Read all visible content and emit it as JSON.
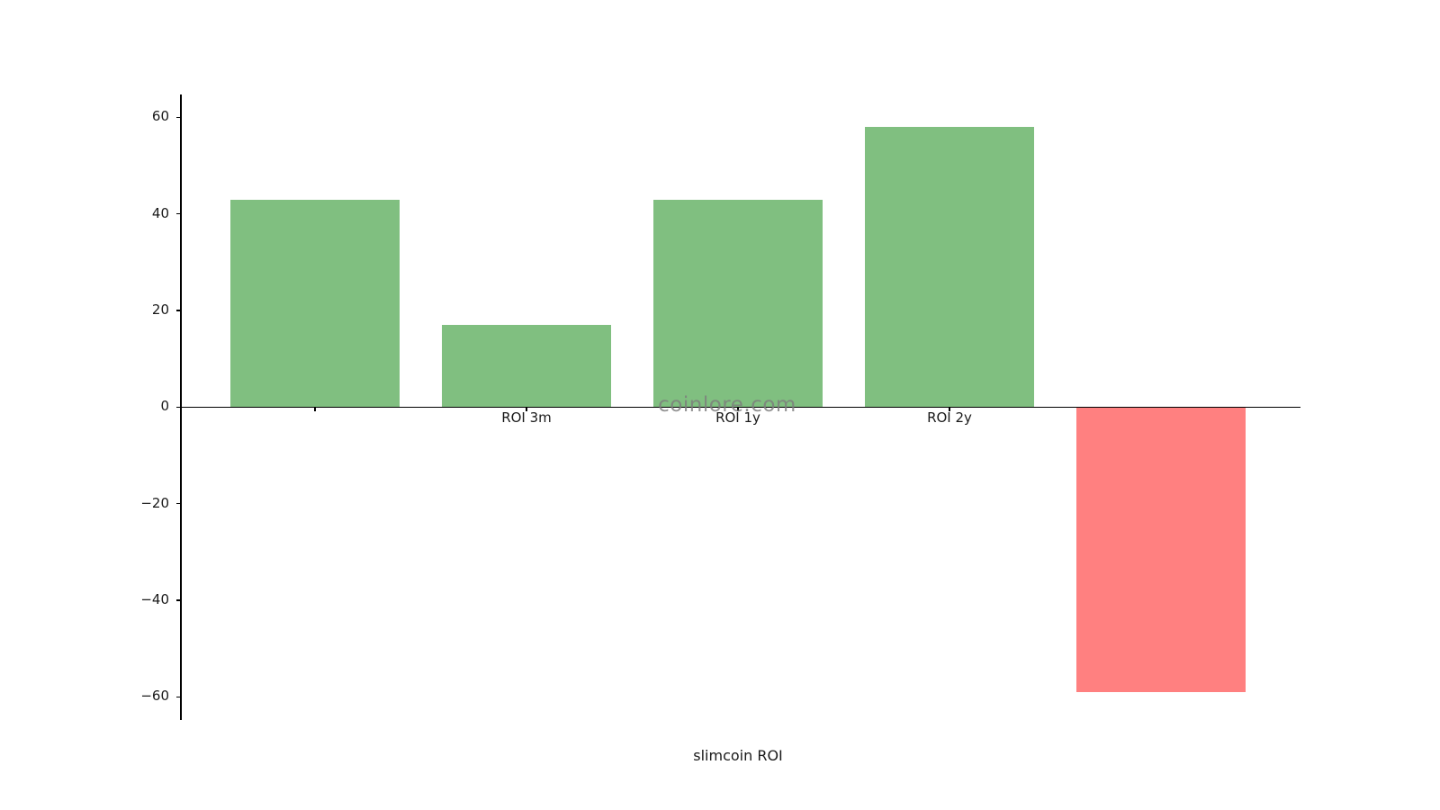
{
  "chart_data": {
    "type": "bar",
    "title": "slimcoin ROI",
    "watermark": "coinlore.com",
    "categories": [
      "",
      "ROI 3m",
      "ROI 1y",
      "ROI 2y",
      ""
    ],
    "values": [
      43,
      17,
      43,
      58,
      -59
    ],
    "series": [
      {
        "name": "slimcoin ROI %",
        "values": [
          43,
          17,
          43,
          58,
          -59
        ]
      }
    ],
    "bar_colors": {
      "positive": "#80bf80",
      "negative": "#ff8080"
    },
    "yticks": {
      "values": [
        60,
        40,
        20,
        0,
        -20,
        -40,
        -60
      ],
      "labels": [
        "60",
        "40",
        "20",
        "0",
        "−20",
        "−40",
        "−60"
      ]
    },
    "xtick_marks_visible": [
      true,
      true,
      true,
      true,
      false
    ],
    "ylim": [
      -65,
      65
    ],
    "xlabel": "",
    "ylabel": "",
    "grid": false,
    "legend": null,
    "axis_color": "#000000",
    "text_color": "#1a1a1a"
  }
}
